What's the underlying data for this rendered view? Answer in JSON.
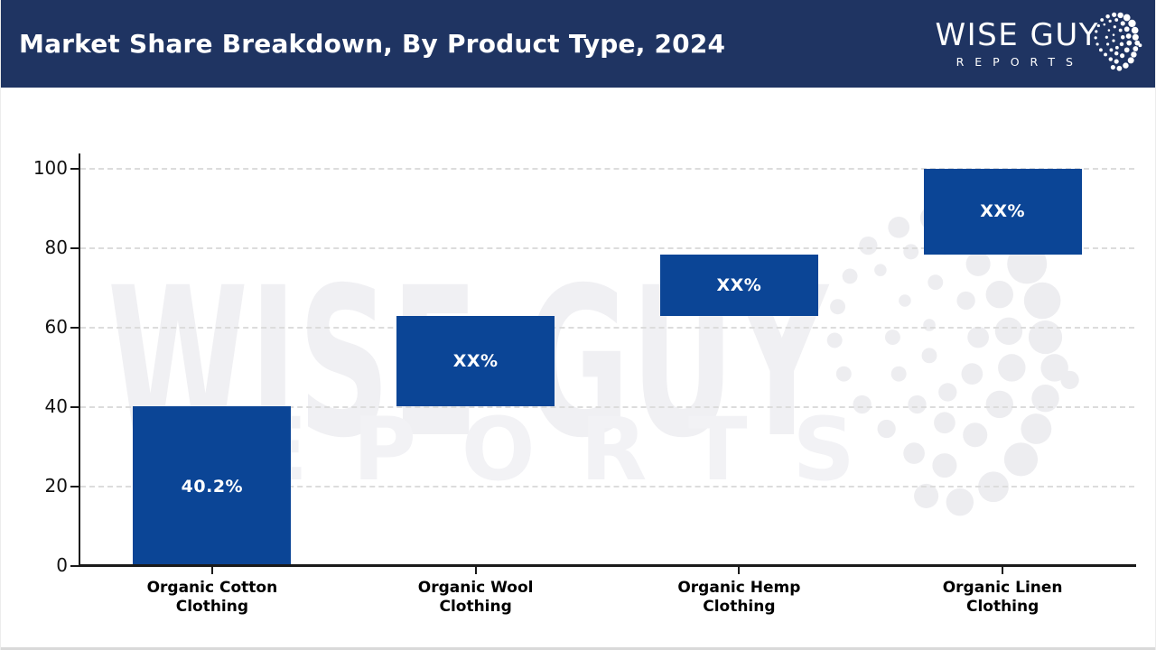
{
  "header": {
    "title": "Market Share Breakdown, By Product Type, 2024",
    "bg_color": "#1f3462",
    "logo": {
      "line1": "WISE GUY",
      "line2": "REPORTS"
    }
  },
  "watermark": {
    "line1": "WISE GUY",
    "line2": "REPORTS"
  },
  "chart_data": {
    "type": "bar",
    "subtype": "waterfall",
    "title": "Market Share Breakdown, By Product Type, 2024",
    "categories": [
      "Organic Cotton Clothing",
      "Organic Wool Clothing",
      "Organic Hemp Clothing",
      "Organic Linen Clothing"
    ],
    "bars": [
      {
        "category_line1": "Organic Cotton",
        "category_line2": "Clothing",
        "start": 0,
        "end": 40.2,
        "label": "40.2%"
      },
      {
        "category_line1": "Organic Wool",
        "category_line2": "Clothing",
        "start": 40.2,
        "end": 63,
        "label": "XX%"
      },
      {
        "category_line1": "Organic Hemp",
        "category_line2": "Clothing",
        "start": 63,
        "end": 78.5,
        "label": "XX%"
      },
      {
        "category_line1": "Organic Linen",
        "category_line2": "Clothing",
        "start": 78.5,
        "end": 100,
        "label": "XX%"
      }
    ],
    "ylim": [
      0,
      100
    ],
    "yticks": [
      0,
      20,
      40,
      60,
      80,
      100
    ],
    "xlabel": "",
    "ylabel": "",
    "bar_color": "#0b4596",
    "grid": {
      "axis": "y",
      "style": "dashed",
      "color": "#dcdcdc"
    },
    "legend": null
  }
}
